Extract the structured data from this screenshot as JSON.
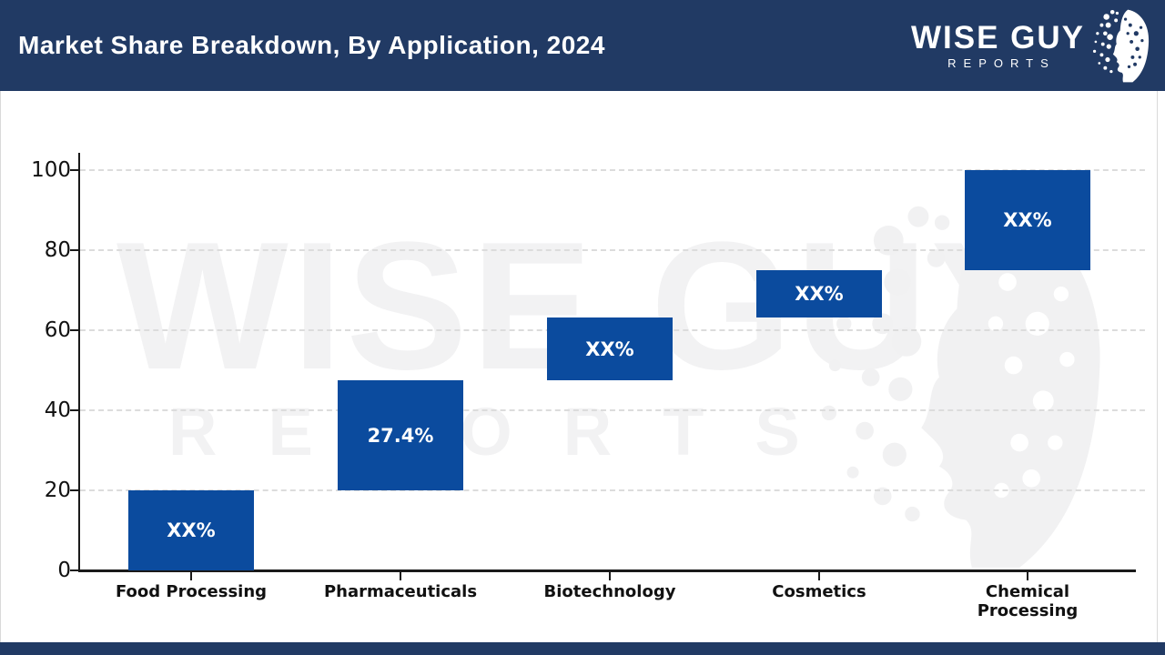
{
  "header": {
    "title": "Market Share Breakdown, By Application, 2024"
  },
  "logo": {
    "line1": "WISE GUY",
    "line2": "REPORTS",
    "face_icon": "dotted-face-profile"
  },
  "watermark": {
    "line1": "WISE GUY",
    "line2": "REPORTS",
    "face_icon": "dotted-face-profile"
  },
  "colors": {
    "header_bg": "#213a64",
    "footer_bg": "#213a64",
    "bar": "#0b4b9e",
    "bar_label": "#ffffff",
    "gridline": "#dcdcdc",
    "axis": "#1a1a1a",
    "watermark": "#f2f2f3"
  },
  "chart_data": {
    "type": "bar",
    "subtype": "floating-waterfall",
    "title": "Market Share Breakdown, By Application, 2024",
    "categories": [
      "Food Processing",
      "Pharmaceuticals",
      "Biotechnology",
      "Cosmetics",
      "Chemical Processing"
    ],
    "bars": [
      {
        "category": "Food Processing",
        "start": 0,
        "end": 20,
        "value_label": "XX%"
      },
      {
        "category": "Pharmaceuticals",
        "start": 20,
        "end": 47.4,
        "value_label": "27.4%"
      },
      {
        "category": "Biotechnology",
        "start": 47.4,
        "end": 63.1,
        "value_label": "XX%"
      },
      {
        "category": "Cosmetics",
        "start": 63.1,
        "end": 74.9,
        "value_label": "XX%"
      },
      {
        "category": "Chemical Processing",
        "start": 74.9,
        "end": 100,
        "value_label": "XX%"
      }
    ],
    "yticks": [
      0,
      20,
      40,
      60,
      80,
      100
    ],
    "ylim": [
      0,
      105
    ],
    "xlabel": "",
    "ylabel": "",
    "grid": "horizontal-dashed",
    "legend": "none"
  }
}
